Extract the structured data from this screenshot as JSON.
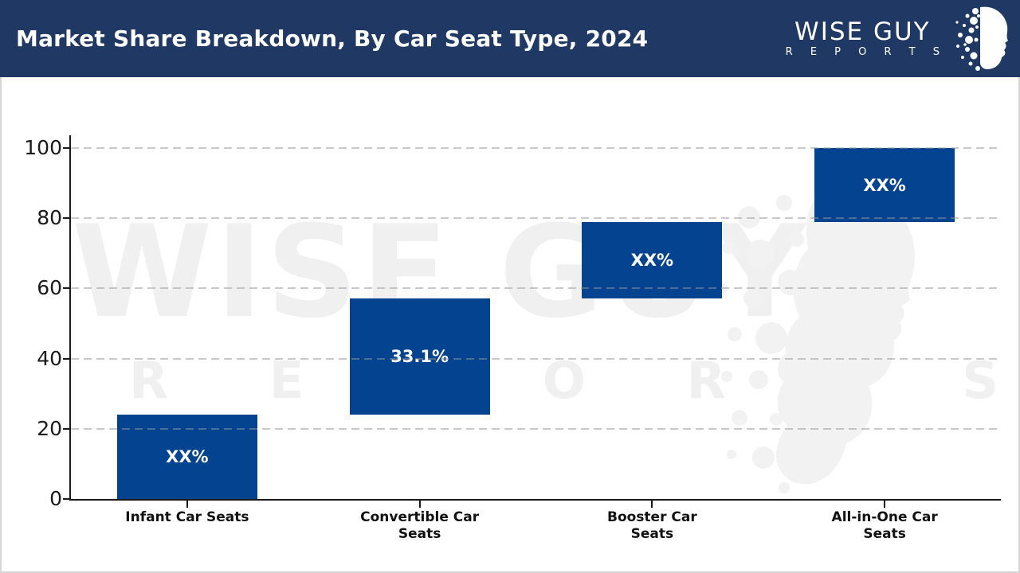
{
  "header": {
    "title": "Market Share Breakdown, By Car Seat Type, 2024",
    "logo": {
      "line1": "WISE GUY",
      "line2": "R E P O R T S"
    }
  },
  "watermark": {
    "line1": "WISE GUY",
    "line2": "R E P O R T S"
  },
  "colors": {
    "header_bg": "#1f3864",
    "bar": "#04438f",
    "bar_label_text": "#ffffff",
    "axis": "#1a1a1a",
    "grid": "#969696",
    "watermark": "#f0f0f0"
  },
  "chart_data": {
    "type": "bar",
    "subtype": "waterfall",
    "title": "Market Share Breakdown, By Car Seat Type, 2024",
    "categories": [
      "Infant Car Seats",
      "Convertible Car Seats",
      "Booster Car Seats",
      "All-in-One Car Seats"
    ],
    "segments": [
      {
        "category": "Infant Car Seats",
        "start": 0,
        "end": 24,
        "label": "XX%"
      },
      {
        "category": "Convertible Car Seats",
        "start": 24,
        "end": 57.1,
        "label": "33.1%"
      },
      {
        "category": "Booster Car Seats",
        "start": 57.1,
        "end": 78.9,
        "label": "XX%"
      },
      {
        "category": "All-in-One Car Seats",
        "start": 78.9,
        "end": 100,
        "label": "XX%"
      }
    ],
    "ylabel": "",
    "xlabel": "",
    "yticks": [
      0,
      20,
      40,
      60,
      80,
      100
    ],
    "ylim": [
      0,
      103.5
    ],
    "grid": "horizontal-dashed",
    "legend": null,
    "bar_value_labels_inside": true
  }
}
